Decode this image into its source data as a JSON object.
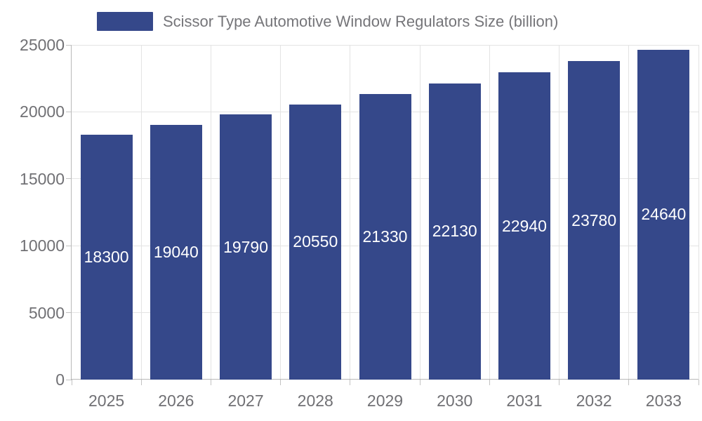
{
  "chart_data": {
    "type": "bar",
    "title": "Scissor Type Automotive Window Regulators Size (billion)",
    "categories": [
      "2025",
      "2026",
      "2027",
      "2028",
      "2029",
      "2030",
      "2031",
      "2032",
      "2033"
    ],
    "values": [
      18300,
      19040,
      19790,
      20550,
      21330,
      22130,
      22940,
      23780,
      24640
    ],
    "xlabel": "",
    "ylabel": "",
    "ylim": [
      0,
      25000
    ],
    "yticks": [
      0,
      5000,
      10000,
      15000,
      20000,
      25000
    ],
    "grid": true,
    "legend_position": "top-left",
    "bar_color": "#35488a",
    "bar_label_color": "#ffffff",
    "axis_text_color": "#707074",
    "legend_text_color": "#757579",
    "gridline_color": "#e3e3e3"
  }
}
